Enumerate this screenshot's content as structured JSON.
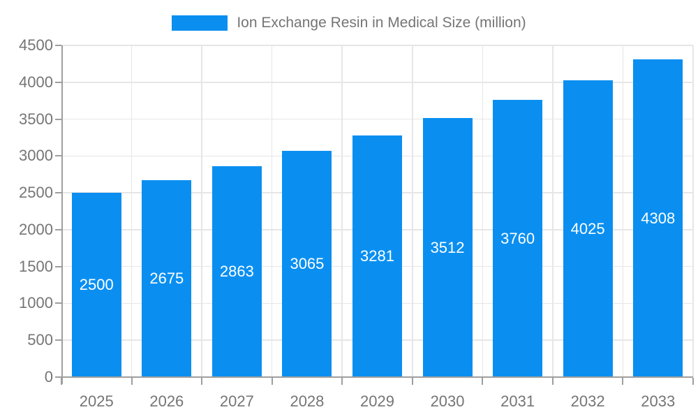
{
  "chart_data": {
    "type": "bar",
    "title": "Ion Exchange Resin in Medical Size (million)",
    "categories": [
      "2025",
      "2026",
      "2027",
      "2028",
      "2029",
      "2030",
      "2031",
      "2032",
      "2033"
    ],
    "values": [
      2500,
      2675,
      2863,
      3065,
      3281,
      3512,
      3760,
      4025,
      4308
    ],
    "xlabel": "",
    "ylabel": "",
    "ylim": [
      0,
      4500
    ],
    "ytick_step": 500,
    "grid": true,
    "legend_position": "top",
    "value_label_position": "middle",
    "colors": {
      "bar": "#0a8ff1",
      "grid": "#e6e6e6",
      "axis": "#9e9e9e",
      "tick_text": "#757575",
      "value_text": "#ffffff",
      "background": "#ffffff"
    }
  }
}
